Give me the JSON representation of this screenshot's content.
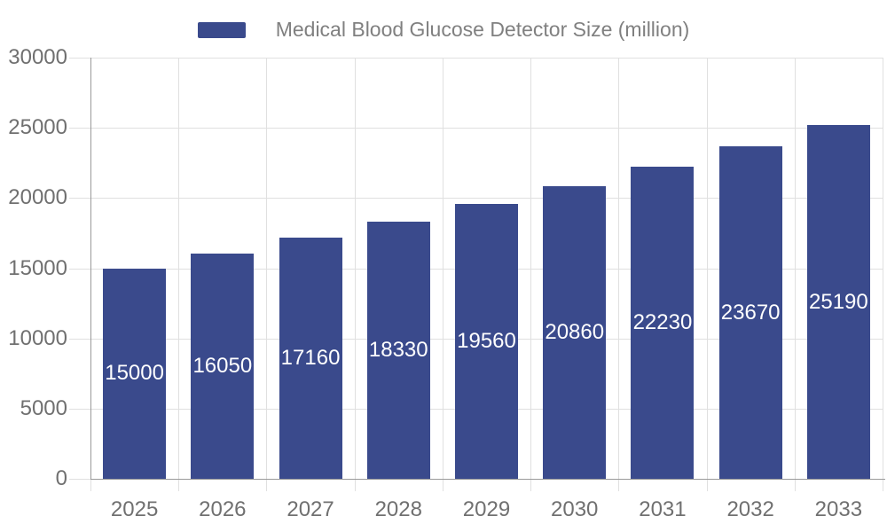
{
  "chart_data": {
    "type": "bar",
    "title": "Medical Blood Glucose Detector Size (million)",
    "legend": "Medical Blood Glucose Detector Size (million)",
    "legend_position": "top",
    "categories": [
      "2025",
      "2026",
      "2027",
      "2028",
      "2029",
      "2030",
      "2031",
      "2032",
      "2033"
    ],
    "series": [
      {
        "name": "Medical Blood Glucose Detector Size (million)",
        "values": [
          15000,
          16050,
          17160,
          18330,
          19560,
          20860,
          22230,
          23670,
          25190
        ]
      }
    ],
    "xlabel": "",
    "ylabel": "",
    "ylim": [
      0,
      30000
    ],
    "yticks": [
      0,
      5000,
      10000,
      15000,
      20000,
      25000,
      30000
    ],
    "grid": true,
    "bar_labels_inside": true,
    "colors": {
      "bar": "#3A4A8C",
      "grid": "#E0E0E0",
      "axis": "#999999",
      "tick_label": "#707070",
      "legend_text": "#808080",
      "bar_label": "#FFFFFF",
      "background": "#FFFFFF"
    }
  }
}
